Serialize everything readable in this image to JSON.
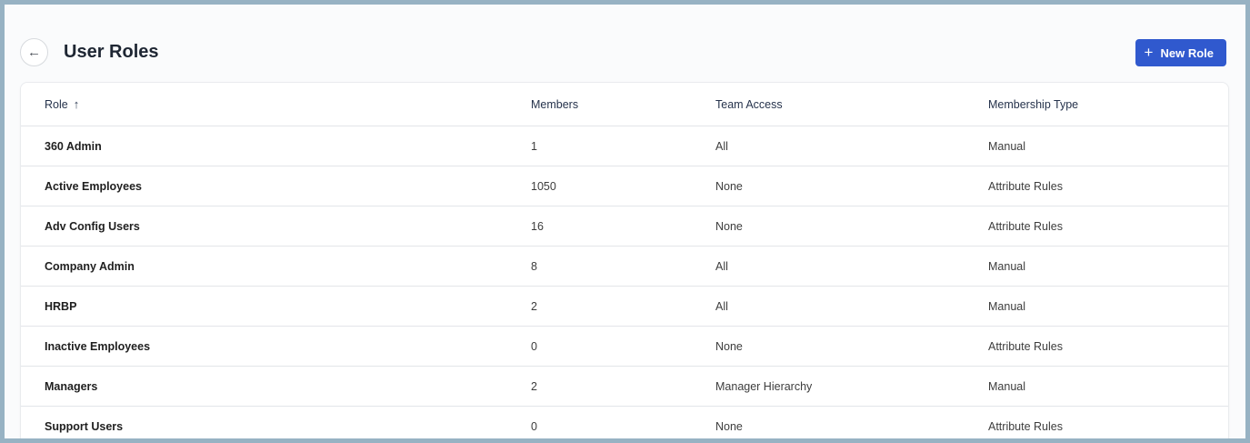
{
  "page": {
    "title": "User Roles"
  },
  "toolbar": {
    "new_role_label": "New Role"
  },
  "icons": {
    "back_arrow": "←",
    "plus": "+",
    "sort_ascending": "↑"
  },
  "colors": {
    "accent_blue": "#3059ce",
    "frame_border": "#97b2c3",
    "page_bg": "#fafbfc",
    "row_divider": "#e3e5e9",
    "header_text": "#26334c"
  },
  "table": {
    "sort": {
      "column": "Role",
      "direction": "ascending"
    },
    "columns": {
      "role": "Role",
      "members": "Members",
      "team_access": "Team Access",
      "membership_type": "Membership Type"
    },
    "rows": [
      {
        "role": "360 Admin",
        "members": "1",
        "team_access": "All",
        "membership_type": "Manual"
      },
      {
        "role": "Active Employees",
        "members": "1050",
        "team_access": "None",
        "membership_type": "Attribute Rules"
      },
      {
        "role": "Adv Config Users",
        "members": "16",
        "team_access": "None",
        "membership_type": "Attribute Rules"
      },
      {
        "role": "Company Admin",
        "members": "8",
        "team_access": "All",
        "membership_type": "Manual"
      },
      {
        "role": "HRBP",
        "members": "2",
        "team_access": "All",
        "membership_type": "Manual"
      },
      {
        "role": "Inactive Employees",
        "members": "0",
        "team_access": "None",
        "membership_type": "Attribute Rules"
      },
      {
        "role": "Managers",
        "members": "2",
        "team_access": "Manager Hierarchy",
        "membership_type": "Manual"
      },
      {
        "role": "Support Users",
        "members": "0",
        "team_access": "None",
        "membership_type": "Attribute Rules"
      }
    ]
  }
}
